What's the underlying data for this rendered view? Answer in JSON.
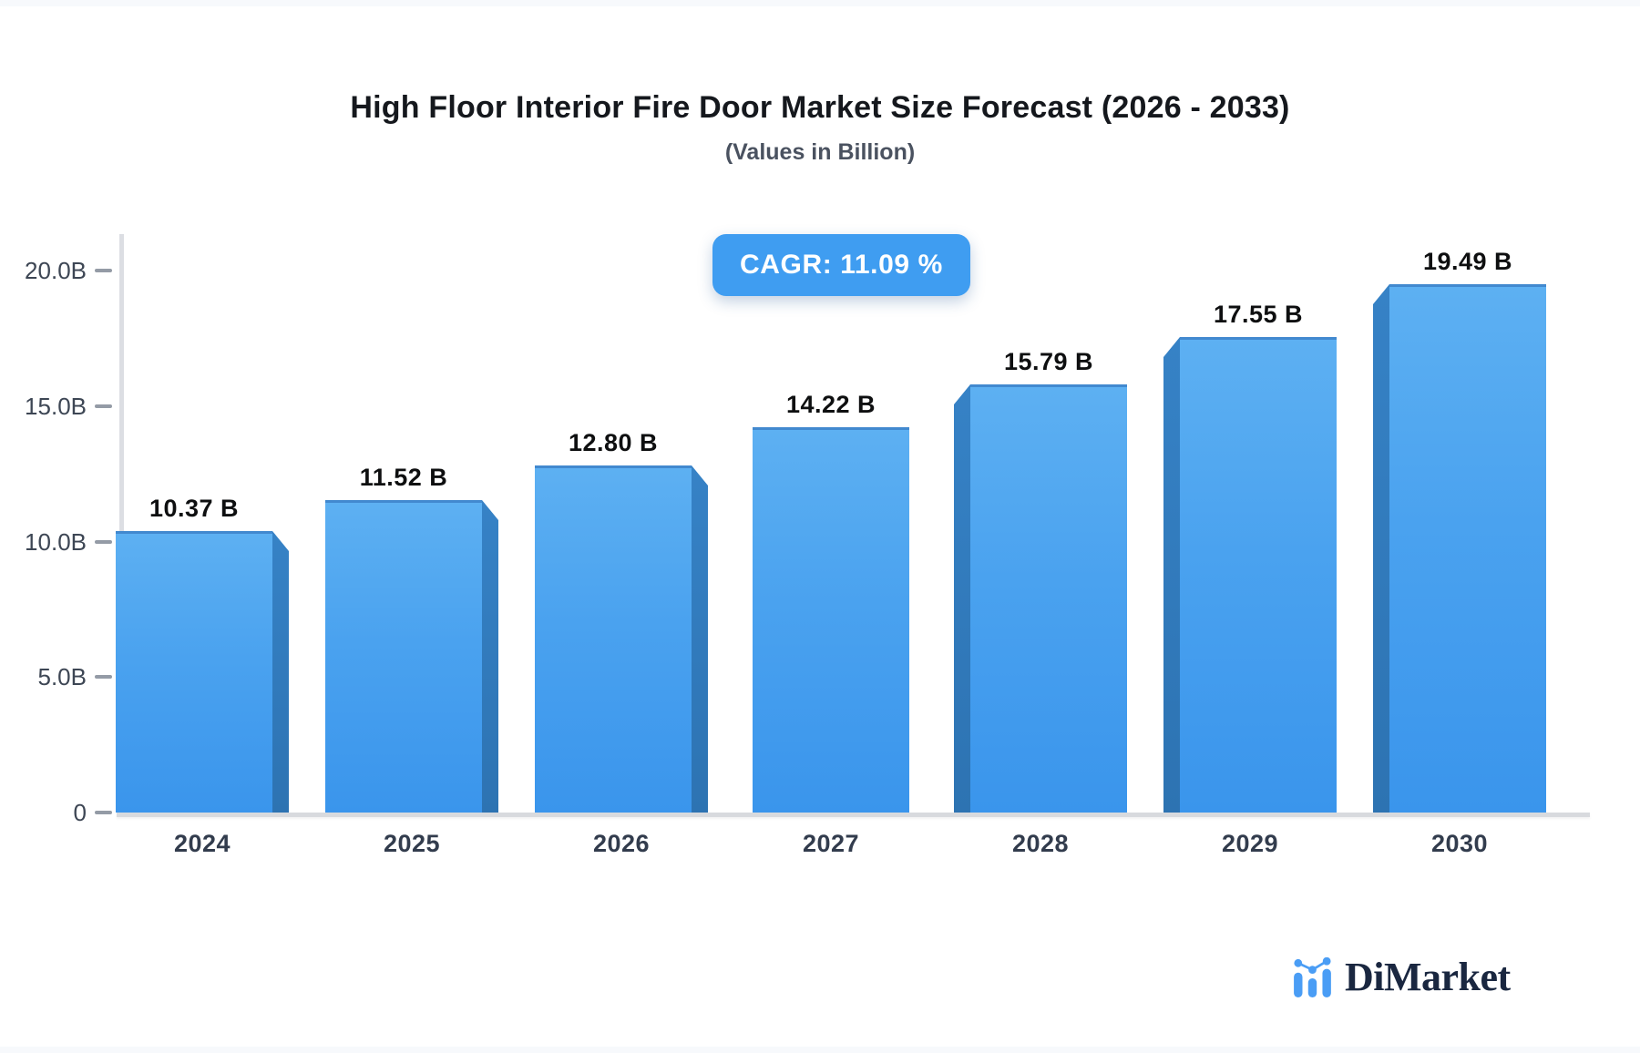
{
  "header": {
    "title": "High Floor Interior Fire Door Market Size Forecast (2026 - 2033)",
    "subtitle": "(Values in Billion)"
  },
  "badge": {
    "label": "CAGR: 11.09 %"
  },
  "chart_data": {
    "type": "bar",
    "title": "High Floor Interior Fire Door Market Size Forecast (2026 - 2033)",
    "subtitle": "(Values in Billion)",
    "cagr": "11.09 %",
    "categories": [
      "2024",
      "2025",
      "2026",
      "2027",
      "2028",
      "2029",
      "2030"
    ],
    "values": [
      10.37,
      11.52,
      12.8,
      14.22,
      15.79,
      17.55,
      19.49
    ],
    "value_labels": [
      "10.37 B",
      "11.52 B",
      "12.80 B",
      "14.22 B",
      "15.79 B",
      "17.55 B",
      "19.49 B"
    ],
    "xlabel": "",
    "ylabel": "",
    "ylim": [
      0,
      20
    ],
    "y_ticks": [
      {
        "label": "20.0B",
        "value": 20
      },
      {
        "label": "15.0B",
        "value": 15
      },
      {
        "label": "10.0B",
        "value": 10
      },
      {
        "label": "5.0B",
        "value": 5
      },
      {
        "label": "0",
        "value": 0
      }
    ],
    "grid": false,
    "legend": false,
    "bar_color_top": "#5db0f2",
    "bar_color_bottom": "#3a95ec",
    "bar_side_color": "#2f78b8"
  },
  "footer": {
    "brand": "DiMarket"
  },
  "colors": {
    "badge_bg": "#3f9df1",
    "badge_text": "#ffffff",
    "axis": "#d8dade",
    "brand_blue": "#4a9df5",
    "brand_navy": "#1a2740"
  }
}
